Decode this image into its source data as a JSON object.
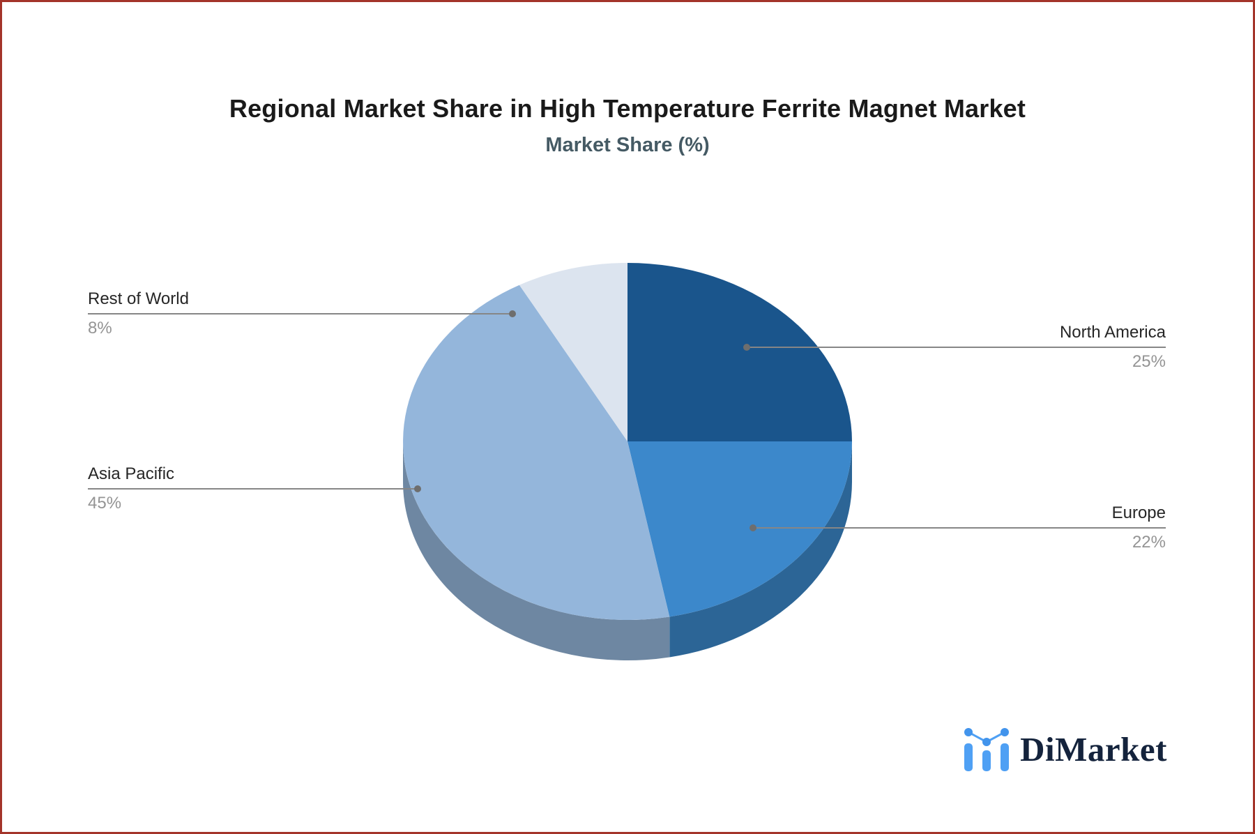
{
  "title": "Regional Market Share in High Temperature Ferrite Magnet Market",
  "subtitle": "Market Share (%)",
  "chart_data": {
    "type": "pie",
    "style": "3d",
    "title": "Regional Market Share in High Temperature Ferrite Magnet Market",
    "subtitle": "Market Share (%)",
    "unit": "%",
    "start_angle_deg": 0,
    "direction": "clockwise",
    "legend_position": "callout-labels",
    "segments": [
      {
        "label": "North America",
        "value": 25,
        "pct_label": "25%",
        "color": "#1A558C"
      },
      {
        "label": "Europe",
        "value": 22,
        "pct_label": "22%",
        "color": "#3C88CB"
      },
      {
        "label": "Asia Pacific",
        "value": 45,
        "pct_label": "45%",
        "color": "#94B6DB"
      },
      {
        "label": "Rest of World",
        "value": 8,
        "pct_label": "8%",
        "color": "#DCE4EF"
      }
    ]
  },
  "colors": {
    "callout_line": "#868686",
    "callout_dot": "#6e6e6e",
    "label_text": "#262626",
    "pct_text": "#949494",
    "subtitle_text": "#455A64",
    "logo_icon_blue": "#4FA0F4",
    "logo_text_navy": "#14233C"
  },
  "logo": {
    "text": "DiMarket",
    "icon": "bar-line-chart-icon"
  }
}
